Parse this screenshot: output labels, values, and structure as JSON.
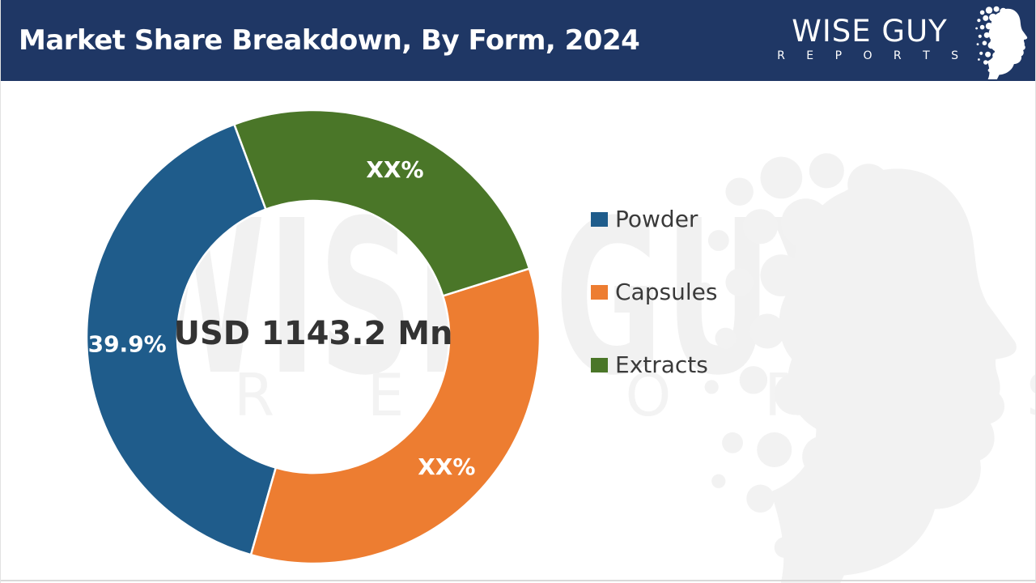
{
  "header": {
    "title": "Market Share Breakdown, By Form, 2024",
    "background_color": "#1f3765",
    "logo": {
      "line1": "WISE GUY",
      "line2": "R E P O R T S"
    }
  },
  "chart_data": {
    "type": "pie",
    "subtype": "donut",
    "title": "Market Share Breakdown, By Form, 2024",
    "center_label": "USD 1143.2 Mn",
    "start_angle_deg": 110.4,
    "direction": "counterclockwise",
    "legend_position": "right",
    "series": [
      {
        "name": "Powder",
        "value_pct": 39.9,
        "slice_label": "39.9%",
        "color": "#1f5c8b"
      },
      {
        "name": "Capsules",
        "value_pct": 34.3,
        "slice_label": "XX%",
        "color": "#ed7d31"
      },
      {
        "name": "Extracts",
        "value_pct": 25.8,
        "slice_label": "XX%",
        "color": "#4a7628"
      }
    ]
  },
  "watermark": {
    "line1": "WISE GUY",
    "line2": "R E P O R T S"
  },
  "colors": {
    "slice_label_text": "#ffffff",
    "center_label_text": "#333333",
    "legend_text": "#3a3a3a",
    "watermark": "#f1f1f1",
    "bottom_rule": "#d9d9d9"
  }
}
